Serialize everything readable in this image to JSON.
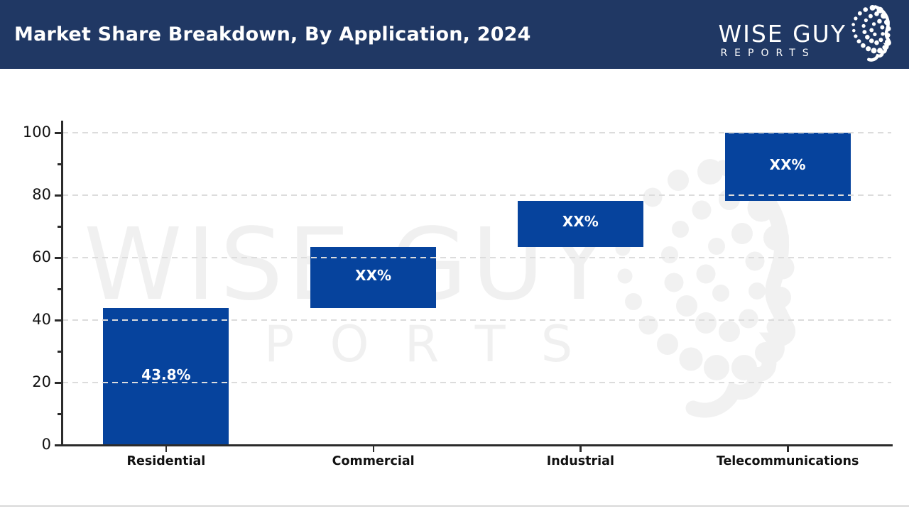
{
  "header": {
    "title": "Market Share Breakdown, By Application, 2024",
    "brand": {
      "name": "WISE GUY",
      "subtitle": "REPORTS"
    },
    "bg_color": "#203864"
  },
  "watermark": {
    "line1": "WISE GUY",
    "line2": "P O R T S"
  },
  "chart_data": {
    "type": "bar",
    "subtype": "waterfall",
    "title": "Market Share Breakdown, By Application, 2024",
    "categories": [
      "Residential",
      "Commercial",
      "Industrial",
      "Telecommunications"
    ],
    "segments": [
      {
        "category": "Residential",
        "start": 0,
        "end": 43.8,
        "label": "43.8%"
      },
      {
        "category": "Commercial",
        "start": 43.8,
        "end": 63.5,
        "label": "XX%"
      },
      {
        "category": "Industrial",
        "start": 63.5,
        "end": 78.1,
        "label": "XX%"
      },
      {
        "category": "Telecommunications",
        "start": 78.1,
        "end": 100,
        "label": "XX%"
      }
    ],
    "ylim": [
      0,
      100
    ],
    "yticks": [
      0,
      20,
      40,
      60,
      80,
      100
    ],
    "minor_tick_step": 10,
    "grid": true,
    "legend": false,
    "bar_color": "#06439d",
    "bar_label_color": "#ffffff",
    "axis_color": "#2b2b2b",
    "gridline_color": "#dcdcdc"
  }
}
